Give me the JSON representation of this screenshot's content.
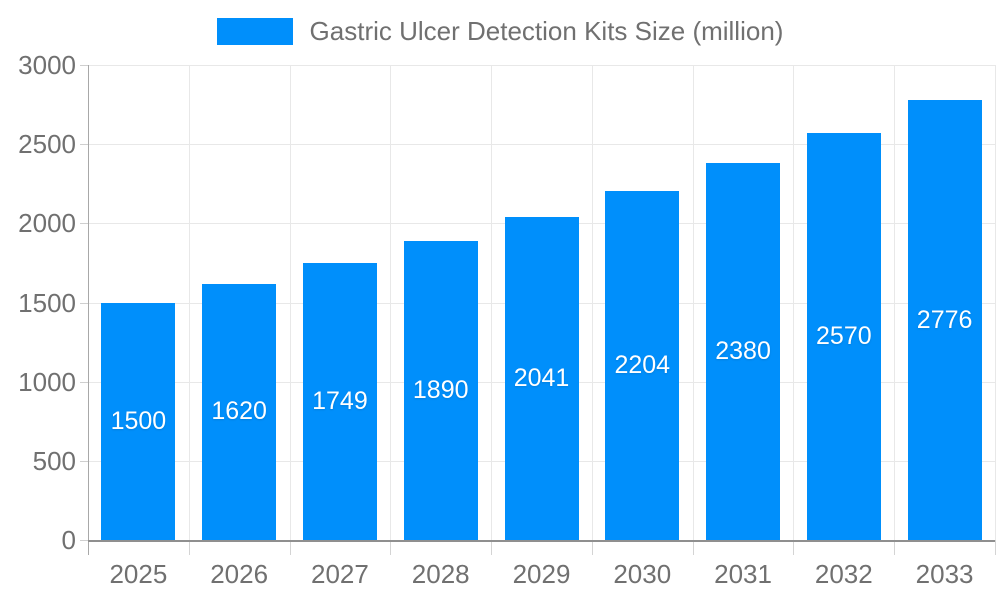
{
  "legend": {
    "label": "Gastric Ulcer Detection Kits Size (million)",
    "marker_color": "#008FFB"
  },
  "colors": {
    "bar": "#008FFB",
    "background": "#ffffff",
    "grid_line": "#e8e8e8",
    "axis_line_x": "#8f8f8f",
    "axis_line_y": "#a8a8a8",
    "tick_mark": "#d4d4d4",
    "axis_label_text": "#707070",
    "data_label_text": "#ffffff"
  },
  "chart_data": {
    "type": "bar",
    "title": "Gastric Ulcer Detection Kits Size (million)",
    "categories": [
      "2025",
      "2026",
      "2027",
      "2028",
      "2029",
      "2030",
      "2031",
      "2032",
      "2033"
    ],
    "values": [
      1500,
      1620,
      1749,
      1890,
      2041,
      2204,
      2380,
      2570,
      2776
    ],
    "series": [
      {
        "name": "Gastric Ulcer Detection Kits Size (million)",
        "values": [
          1500,
          1620,
          1749,
          1890,
          2041,
          2204,
          2380,
          2570,
          2776
        ]
      }
    ],
    "xlabel": "",
    "ylabel": "",
    "ylim": [
      0,
      3000
    ],
    "yticks": [
      0,
      500,
      1000,
      1500,
      2000,
      2500,
      3000
    ],
    "grid": true,
    "legend_position": "top",
    "data_labels": "inside-center",
    "bar_color": "#008FFB"
  }
}
